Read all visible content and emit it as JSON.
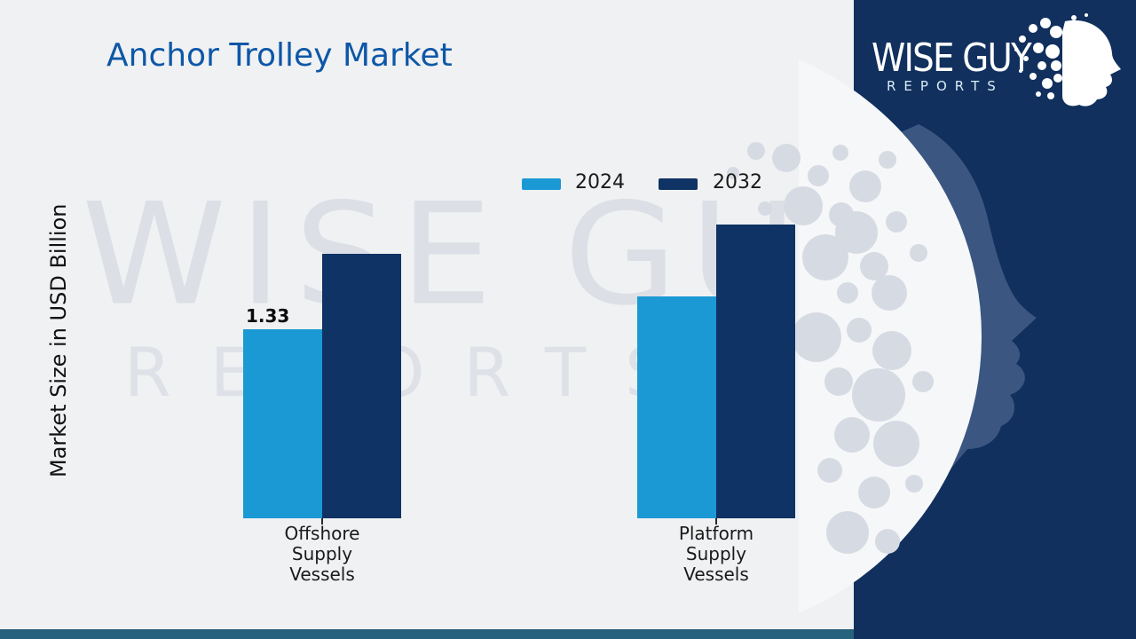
{
  "header": {
    "title": "Anchor Trolley Market"
  },
  "logo": {
    "brand": "WISE GUY",
    "sub": "REPORTS"
  },
  "watermark": {
    "brand": "WISE GUY",
    "sub": "REPORTS"
  },
  "colors": {
    "title_blue": "#0d57a8",
    "bar_2024_blue": "#1b99d5",
    "bar_2032_navy": "#0f3364",
    "panel_navy": "#11305e",
    "footer_teal": "#26617e",
    "background": "#f0f1f2"
  },
  "chart_data": {
    "type": "bar",
    "title": "Anchor Trolley Market",
    "xlabel": "",
    "ylabel": "Market Size in USD Billion",
    "categories": [
      "Offshore Supply Vessels",
      "Platform Supply Vessels"
    ],
    "category_label_lines": [
      [
        "Offshore",
        "Supply",
        "Vessels"
      ],
      [
        "Platform",
        "Supply",
        "Vessels"
      ]
    ],
    "series": [
      {
        "name": "2024",
        "color": "#1b99d5",
        "values": [
          1.33,
          1.56
        ]
      },
      {
        "name": "2032",
        "color": "#0f3364",
        "values": [
          1.86,
          2.07
        ]
      }
    ],
    "bar_value_labels": [
      {
        "text": "1.33",
        "series_index": 0,
        "category_index": 0
      }
    ],
    "legend_position": "top",
    "grid": false,
    "ylim": [
      0,
      2.2
    ]
  }
}
